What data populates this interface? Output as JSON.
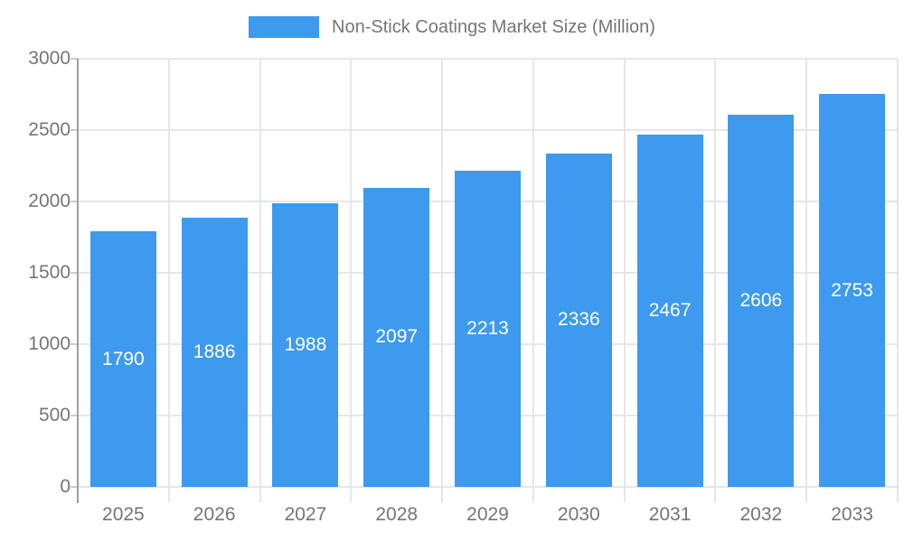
{
  "chart_data": {
    "type": "bar",
    "title": "Non-Stick Coatings Market Size (Million)",
    "legend": {
      "position": "top",
      "entries": [
        {
          "label": "Non-Stick Coatings Market Size (Million)",
          "color": "#3d9aee"
        }
      ]
    },
    "categories": [
      "2025",
      "2026",
      "2027",
      "2028",
      "2029",
      "2030",
      "2031",
      "2032",
      "2033"
    ],
    "series": [
      {
        "name": "Non-Stick Coatings Market Size (Million)",
        "values": [
          1790,
          1886,
          1988,
          2097,
          2213,
          2336,
          2467,
          2606,
          2753
        ]
      }
    ],
    "data_labels": [
      "1790",
      "1886",
      "1988",
      "2097",
      "2213",
      "2336",
      "2467",
      "2606",
      "2753"
    ],
    "xlabel": "",
    "ylabel": "",
    "ylim": [
      0,
      3000
    ],
    "ytick_step": 500,
    "ytick_labels": [
      "0",
      "500",
      "1000",
      "1500",
      "2000",
      "2500",
      "3000"
    ],
    "grid": true,
    "colors": {
      "bar": "#3d9aee",
      "gridline": "#e6e6e6",
      "axis_line": "#9e9e9e",
      "tick_text": "#757575",
      "legend_text": "#757575",
      "bar_label_text": "#ffffff",
      "background": "#ffffff"
    }
  }
}
